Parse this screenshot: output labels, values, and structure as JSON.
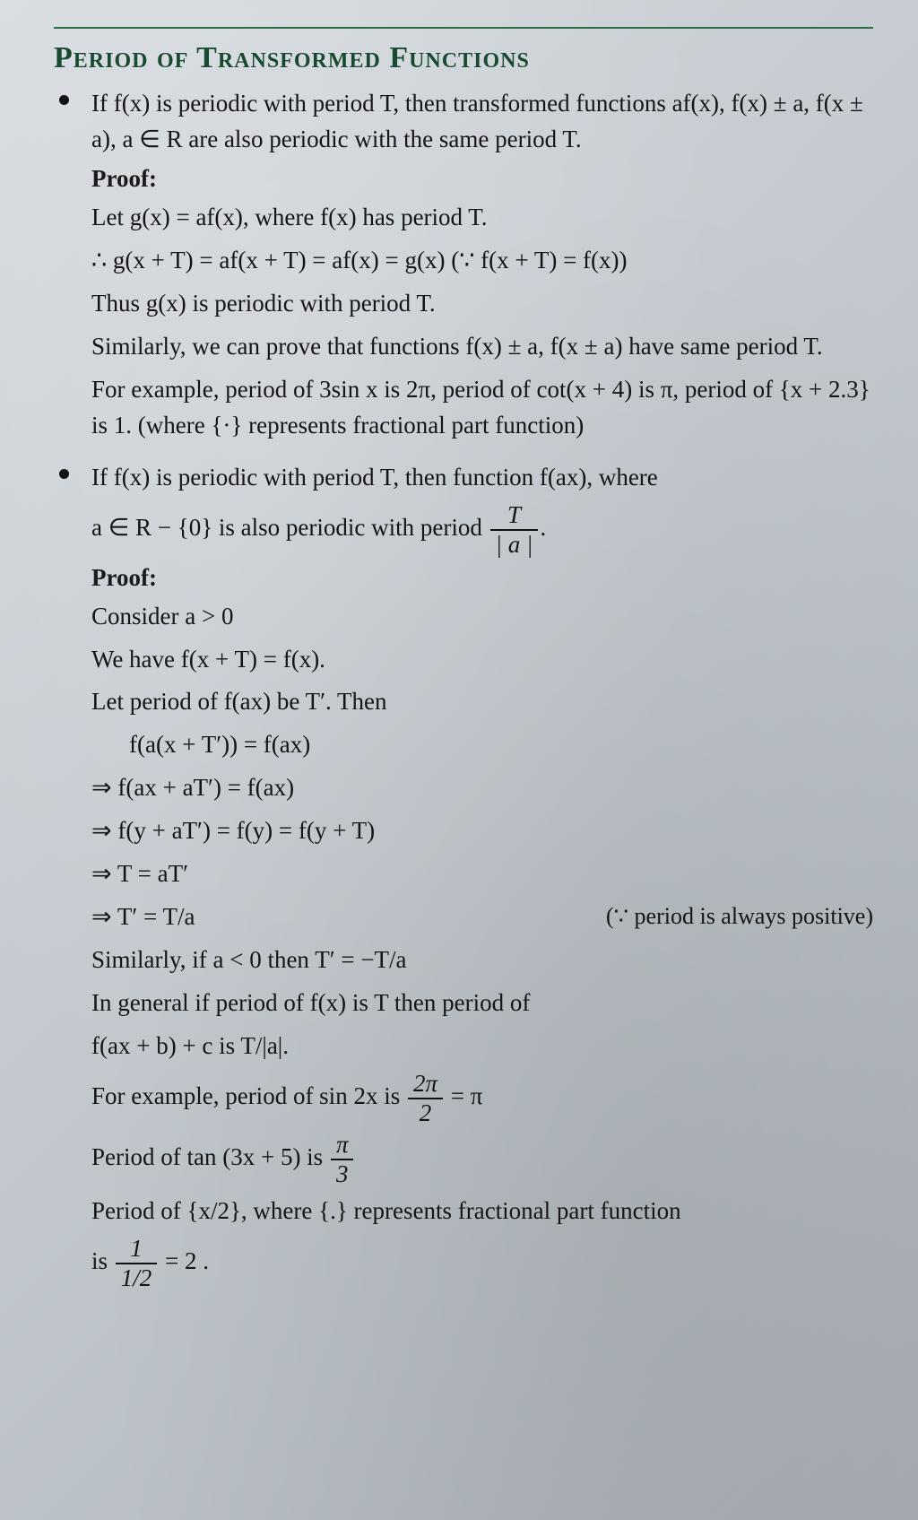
{
  "heading": "Period of Transformed Functions",
  "b1": {
    "p1": "If f(x) is periodic with period T, then transformed functions af(x), f(x) ± a, f(x ± a), a ∈ R are also periodic with the same period T.",
    "proof_label": "Proof:",
    "p2": "Let  g(x) = af(x), where f(x) has period T.",
    "p3": "∴   g(x + T) = af(x + T) = af(x) = g(x) (∵  f(x + T) = f(x))",
    "p4": "Thus g(x) is periodic with period T.",
    "p5": "Similarly, we can prove that functions f(x) ± a, f(x ± a) have same period T.",
    "p6": "For example, period of 3sin x is 2π, period of cot(x + 4) is π, period of {x + 2.3} is 1. (where {·} represents fractional part function)"
  },
  "b2": {
    "p1_a": "If f(x) is periodic with period T, then function f(ax), where",
    "p1_b": "a ∈ R − {0} is also periodic with period ",
    "frac_top": "T",
    "frac_bot": "| a |",
    "period_dot": ".",
    "proof_label": "Proof:",
    "p2": "Consider a > 0",
    "p3": "We have f(x + T) = f(x).",
    "p4": "Let period of f(ax) be T′. Then",
    "eq1": "f(a(x + T′)) = f(ax)",
    "eq2": "⇒   f(ax + aT′) = f(ax)",
    "eq3": "⇒   f(y + aT′) = f(y) = f(y + T)",
    "eq4": "⇒   T = aT′",
    "eq5": "⇒   T′ = T/a",
    "eq5_note": "(∵ period is always positive)",
    "p5": "Similarly, if a < 0 then T′ = −T/a",
    "p6": "In general if period of f(x) is T then period of",
    "p7": "f(ax + b) + c is T/|a|.",
    "ex1_a": "For example, period of sin 2x is ",
    "ex1_frac_top": "2π",
    "ex1_frac_bot": "2",
    "ex1_b": " = π",
    "ex2_a": "Period of tan (3x + 5) is ",
    "ex2_frac_top": "π",
    "ex2_frac_bot": "3",
    "ex3": "Period of {x/2}, where {.} represents fractional part function",
    "ex3b_a": "is ",
    "ex3b_frac_top": "1",
    "ex3b_frac_bot": "1/2",
    "ex3b_b": " = 2 ."
  }
}
